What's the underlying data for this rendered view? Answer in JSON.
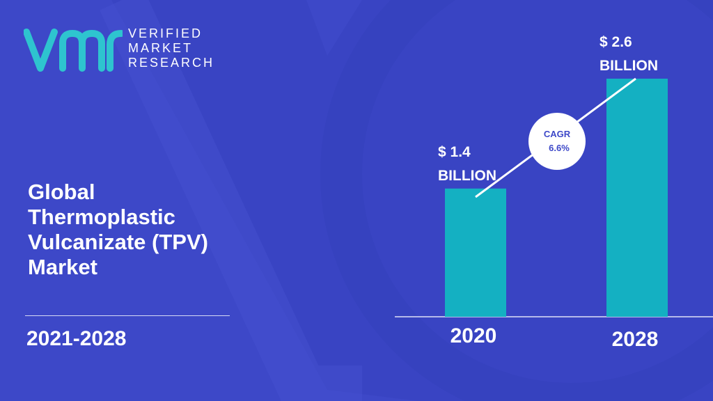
{
  "brand": {
    "line1": "VERIFIED",
    "line2": "MARKET",
    "line3": "RESEARCH"
  },
  "title_lines": [
    "Global",
    "Thermoplastic",
    "Vulcanizate (TPV)",
    "Market"
  ],
  "period": "2021-2028",
  "colors": {
    "background": "#3d48c8",
    "bar": "#14b0c2",
    "logo": "#2ec4cf",
    "white": "#ffffff",
    "cagr_text": "#3d48c8"
  },
  "cagr": {
    "label": "CAGR",
    "value": "6.6%"
  },
  "chart_data": {
    "type": "bar",
    "categories": [
      "2020",
      "2028"
    ],
    "values": [
      1.4,
      2.6
    ],
    "value_labels": [
      [
        "$ 1.4",
        "BILLION"
      ],
      [
        "$ 2.6",
        "BILLION"
      ]
    ],
    "unit": "BILLION",
    "title": "",
    "xlabel": "",
    "ylabel": "",
    "ylim": [
      0,
      2.6
    ]
  }
}
